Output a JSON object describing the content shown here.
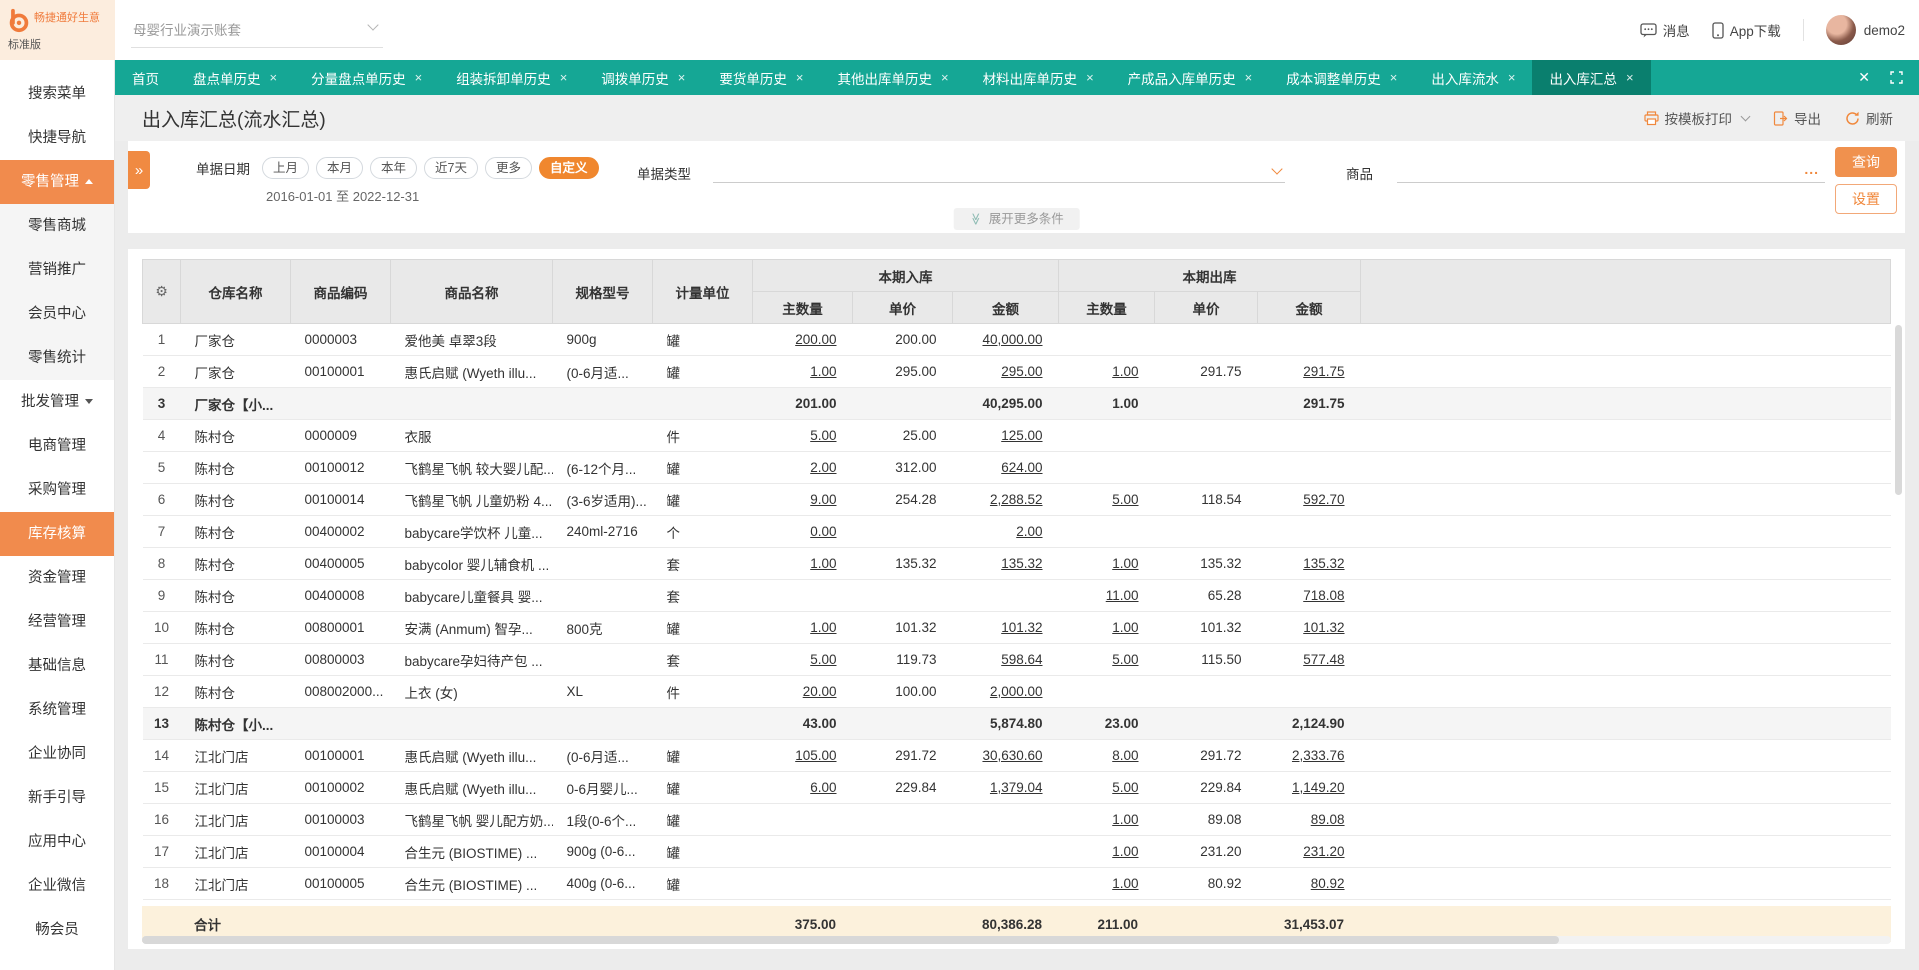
{
  "colors": {
    "teal": "#15A795",
    "teal_active": "#0A7F6E",
    "accent_orange": "#F0883C",
    "sidebar_active_orange": "#F18B4D",
    "total_row_bg": "#FCF1DC"
  },
  "icons": {
    "gear": "⚙",
    "expander": "»",
    "more_chevrons": "≫",
    "ellipsis": "...",
    "tab_close": "×",
    "close_all": "✕",
    "refresh": "↻"
  },
  "topbar": {
    "logo_title": "畅捷通好生意",
    "logo_edition": "标准版",
    "account": "母婴行业演示账套",
    "messages_label": "消息",
    "app_download_label": "App下载",
    "username": "demo2"
  },
  "tabbar": {
    "tabs": [
      {
        "label": "首页",
        "closable": false,
        "active": false
      },
      {
        "label": "盘点单历史",
        "closable": true,
        "active": false
      },
      {
        "label": "分量盘点单历史",
        "closable": true,
        "active": false
      },
      {
        "label": "组装拆卸单历史",
        "closable": true,
        "active": false
      },
      {
        "label": "调拨单历史",
        "closable": true,
        "active": false
      },
      {
        "label": "要货单历史",
        "closable": true,
        "active": false
      },
      {
        "label": "其他出库单历史",
        "closable": true,
        "active": false
      },
      {
        "label": "材料出库单历史",
        "closable": true,
        "active": false
      },
      {
        "label": "产成品入库单历史",
        "closable": true,
        "active": false
      },
      {
        "label": "成本调整单历史",
        "closable": true,
        "active": false
      },
      {
        "label": "出入库流水",
        "closable": true,
        "active": false
      },
      {
        "label": "出入库汇总",
        "closable": true,
        "active": true
      }
    ]
  },
  "sidebar": {
    "items": [
      {
        "label": "搜索菜单",
        "kind": "plain"
      },
      {
        "label": "快捷导航",
        "kind": "plain"
      },
      {
        "label": "零售管理",
        "kind": "group-open"
      },
      {
        "label": "零售商城",
        "kind": "sub"
      },
      {
        "label": "营销推广",
        "kind": "sub"
      },
      {
        "label": "会员中心",
        "kind": "sub"
      },
      {
        "label": "零售统计",
        "kind": "sub"
      },
      {
        "label": "批发管理",
        "kind": "group-closed"
      },
      {
        "label": "电商管理",
        "kind": "plain"
      },
      {
        "label": "采购管理",
        "kind": "plain"
      },
      {
        "label": "库存核算",
        "kind": "active"
      },
      {
        "label": "资金管理",
        "kind": "plain"
      },
      {
        "label": "经营管理",
        "kind": "plain"
      },
      {
        "label": "基础信息",
        "kind": "plain"
      },
      {
        "label": "系统管理",
        "kind": "plain"
      },
      {
        "label": "企业协同",
        "kind": "plain"
      },
      {
        "label": "新手引导",
        "kind": "plain"
      },
      {
        "label": "应用中心",
        "kind": "plain"
      },
      {
        "label": "企业微信",
        "kind": "plain"
      },
      {
        "label": "畅会员",
        "kind": "plain"
      }
    ]
  },
  "page": {
    "title": "出入库汇总(流水汇总)",
    "toolbar": {
      "print_label": "按模板打印",
      "export_label": "导出",
      "refresh_label": "刷新"
    }
  },
  "filters": {
    "date_label": "单据日期",
    "date_options": [
      "上月",
      "本月",
      "本年",
      "近7天",
      "更多"
    ],
    "date_custom": "自定义",
    "date_range": "2016-01-01 至 2022-12-31",
    "doc_type_label": "单据类型",
    "product_label": "商品",
    "search_label": "查询",
    "settings_label": "设置",
    "expand_more_label": "展开更多条件"
  },
  "table": {
    "headers": {
      "warehouse": "仓库名称",
      "code": "商品编码",
      "name": "商品名称",
      "spec": "规格型号",
      "unit": "计量单位",
      "inbound_group": "本期入库",
      "outbound_group": "本期出库",
      "qty": "主数量",
      "price": "单价",
      "amount": "金额"
    },
    "rows": [
      {
        "n": "1",
        "wh": "厂家仓",
        "code": "0000003",
        "name": "爱他美 卓翠3段",
        "spec": "900g",
        "unit": "罐",
        "iq": "200.00",
        "ip": "200.00",
        "ia": "40,000.00",
        "oq": "",
        "op": "",
        "oa": "",
        "sub": false
      },
      {
        "n": "2",
        "wh": "厂家仓",
        "code": "00100001",
        "name": "惠氏启赋 (Wyeth illu...",
        "spec": "(0-6月适...",
        "unit": "罐",
        "iq": "1.00",
        "ip": "295.00",
        "ia": "295.00",
        "oq": "1.00",
        "op": "291.75",
        "oa": "291.75",
        "sub": false
      },
      {
        "n": "3",
        "wh": "厂家仓【小...",
        "code": "",
        "name": "",
        "spec": "",
        "unit": "",
        "iq": "201.00",
        "ip": "",
        "ia": "40,295.00",
        "oq": "1.00",
        "op": "",
        "oa": "291.75",
        "sub": true
      },
      {
        "n": "4",
        "wh": "陈村仓",
        "code": "0000009",
        "name": "衣服",
        "spec": "",
        "unit": "件",
        "iq": "5.00",
        "ip": "25.00",
        "ia": "125.00",
        "oq": "",
        "op": "",
        "oa": "",
        "sub": false
      },
      {
        "n": "5",
        "wh": "陈村仓",
        "code": "00100012",
        "name": "飞鹤星飞帆 较大婴儿配...",
        "spec": "(6-12个月...",
        "unit": "罐",
        "iq": "2.00",
        "ip": "312.00",
        "ia": "624.00",
        "oq": "",
        "op": "",
        "oa": "",
        "sub": false
      },
      {
        "n": "6",
        "wh": "陈村仓",
        "code": "00100014",
        "name": "飞鹤星飞帆 儿童奶粉 4...",
        "spec": "(3-6岁适用)...",
        "unit": "罐",
        "iq": "9.00",
        "ip": "254.28",
        "ia": "2,288.52",
        "oq": "5.00",
        "op": "118.54",
        "oa": "592.70",
        "sub": false
      },
      {
        "n": "7",
        "wh": "陈村仓",
        "code": "00400002",
        "name": "babycare学饮杯 儿童...",
        "spec": "240ml-2716",
        "unit": "个",
        "iq": "0.00",
        "ip": "",
        "ia": "2.00",
        "oq": "",
        "op": "",
        "oa": "",
        "sub": false
      },
      {
        "n": "8",
        "wh": "陈村仓",
        "code": "00400005",
        "name": "babycolor 婴儿辅食机 ...",
        "spec": "",
        "unit": "套",
        "iq": "1.00",
        "ip": "135.32",
        "ia": "135.32",
        "oq": "1.00",
        "op": "135.32",
        "oa": "135.32",
        "sub": false
      },
      {
        "n": "9",
        "wh": "陈村仓",
        "code": "00400008",
        "name": "babycare儿童餐具 婴...",
        "spec": "",
        "unit": "套",
        "iq": "",
        "ip": "",
        "ia": "",
        "oq": "11.00",
        "op": "65.28",
        "oa": "718.08",
        "sub": false
      },
      {
        "n": "10",
        "wh": "陈村仓",
        "code": "00800001",
        "name": "安满 (Anmum) 智孕...",
        "spec": "800克",
        "unit": "罐",
        "iq": "1.00",
        "ip": "101.32",
        "ia": "101.32",
        "oq": "1.00",
        "op": "101.32",
        "oa": "101.32",
        "sub": false
      },
      {
        "n": "11",
        "wh": "陈村仓",
        "code": "00800003",
        "name": "babycare孕妇待产包 ...",
        "spec": "",
        "unit": "套",
        "iq": "5.00",
        "ip": "119.73",
        "ia": "598.64",
        "oq": "5.00",
        "op": "115.50",
        "oa": "577.48",
        "sub": false
      },
      {
        "n": "12",
        "wh": "陈村仓",
        "code": "008002000...",
        "name": "上衣 (女)",
        "spec": "XL",
        "unit": "件",
        "iq": "20.00",
        "ip": "100.00",
        "ia": "2,000.00",
        "oq": "",
        "op": "",
        "oa": "",
        "sub": false
      },
      {
        "n": "13",
        "wh": "陈村仓【小...",
        "code": "",
        "name": "",
        "spec": "",
        "unit": "",
        "iq": "43.00",
        "ip": "",
        "ia": "5,874.80",
        "oq": "23.00",
        "op": "",
        "oa": "2,124.90",
        "sub": true
      },
      {
        "n": "14",
        "wh": "江北门店",
        "code": "00100001",
        "name": "惠氏启赋 (Wyeth illu...",
        "spec": "(0-6月适...",
        "unit": "罐",
        "iq": "105.00",
        "ip": "291.72",
        "ia": "30,630.60",
        "oq": "8.00",
        "op": "291.72",
        "oa": "2,333.76",
        "sub": false
      },
      {
        "n": "15",
        "wh": "江北门店",
        "code": "00100002",
        "name": "惠氏启赋 (Wyeth illu...",
        "spec": "0-6月婴儿...",
        "unit": "罐",
        "iq": "6.00",
        "ip": "229.84",
        "ia": "1,379.04",
        "oq": "5.00",
        "op": "229.84",
        "oa": "1,149.20",
        "sub": false
      },
      {
        "n": "16",
        "wh": "江北门店",
        "code": "00100003",
        "name": "飞鹤星飞帆 婴儿配方奶...",
        "spec": "1段(0-6个...",
        "unit": "罐",
        "iq": "",
        "ip": "",
        "ia": "",
        "oq": "1.00",
        "op": "89.08",
        "oa": "89.08",
        "sub": false
      },
      {
        "n": "17",
        "wh": "江北门店",
        "code": "00100004",
        "name": "合生元 (BIOSTIME) ...",
        "spec": "900g (0-6...",
        "unit": "罐",
        "iq": "",
        "ip": "",
        "ia": "",
        "oq": "1.00",
        "op": "231.20",
        "oa": "231.20",
        "sub": false
      },
      {
        "n": "18",
        "wh": "江北门店",
        "code": "00100005",
        "name": "合生元 (BIOSTIME) ...",
        "spec": "400g (0-6...",
        "unit": "罐",
        "iq": "",
        "ip": "",
        "ia": "",
        "oq": "1.00",
        "op": "80.92",
        "oa": "80.92",
        "sub": false
      }
    ],
    "total": {
      "label": "合计",
      "in_qty": "375.00",
      "in_amount": "80,386.28",
      "out_qty": "211.00",
      "out_amount": "31,453.07"
    }
  }
}
